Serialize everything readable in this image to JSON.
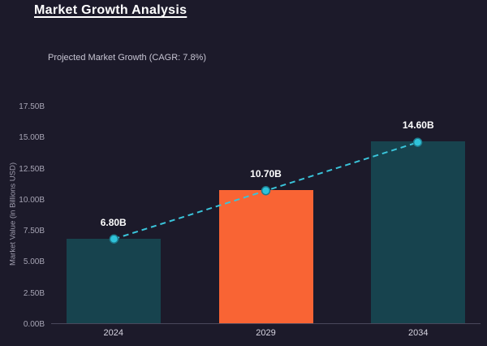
{
  "chart_data": {
    "type": "bar",
    "title": "Market Growth Analysis",
    "subtitle": "Projected Market Growth (CAGR: 7.8%)",
    "xlabel": "",
    "ylabel": "Market Value (in Billions USD)",
    "categories": [
      "2024",
      "2029",
      "2034"
    ],
    "values": [
      6.8,
      10.7,
      14.6
    ],
    "value_labels": [
      "6.80B",
      "10.70B",
      "14.60B"
    ],
    "ylim": [
      0,
      17.5
    ],
    "ytick_values": [
      0,
      2.5,
      5,
      7.5,
      10,
      12.5,
      15,
      17.5
    ],
    "ytick_labels": [
      "0.00B",
      "2.50B",
      "5.00B",
      "7.50B",
      "10.00B",
      "12.50B",
      "15.00B",
      "17.50B"
    ],
    "bar_colors": [
      "#17434e",
      "#f96434",
      "#17434e"
    ],
    "trend_line_color": "#3ac4da",
    "marker_fill": "#2fc3da",
    "marker_stroke": "#1d7a8c",
    "background": "#1c1a2a",
    "grid": false,
    "legend": null
  }
}
